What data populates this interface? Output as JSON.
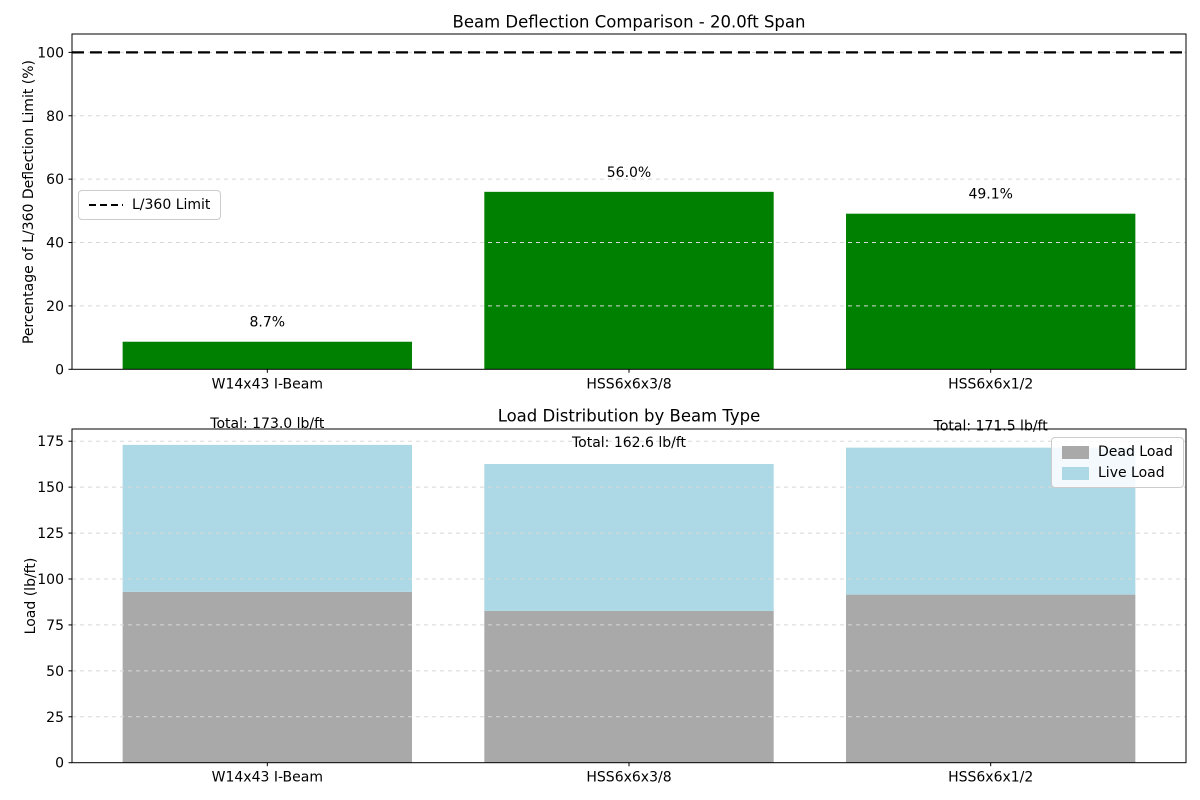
{
  "chart_data": [
    {
      "type": "bar",
      "title": "Beam Deflection Comparison - 20.0ft Span",
      "ylabel": "Percentage of L/360 Deflection Limit (%)",
      "xlabel": "",
      "categories": [
        "W14x43 I-Beam",
        "HSS6x6x3/8",
        "HSS6x6x1/2"
      ],
      "values": [
        8.7,
        56.0,
        49.1
      ],
      "bar_labels": [
        "8.7%",
        "56.0%",
        "49.1%"
      ],
      "bar_color": "#008000",
      "yticks": [
        0,
        20,
        40,
        60,
        80,
        100
      ],
      "ylim": [
        0,
        105.8
      ],
      "grid": "dashed-horizontal-y",
      "reference_line": {
        "value": 100,
        "label": "L/360 Limit",
        "color": "#000000",
        "style": "dashed"
      },
      "legend_position": "center-left",
      "legend": [
        {
          "label": "L/360 Limit",
          "sample": "dashed-line",
          "color": "#000000"
        }
      ]
    },
    {
      "type": "stacked-bar",
      "title": "Load Distribution by Beam Type",
      "ylabel": "Load (lb/ft)",
      "xlabel": "",
      "categories": [
        "W14x43 I-Beam",
        "HSS6x6x3/8",
        "HSS6x6x1/2"
      ],
      "series": [
        {
          "name": "Dead Load",
          "color": "#a9a9a9",
          "values": [
            93.0,
            82.6,
            91.5
          ]
        },
        {
          "name": "Live Load",
          "color": "#add8e6",
          "values": [
            80.0,
            80.0,
            80.0
          ]
        }
      ],
      "totals": [
        173.0,
        162.6,
        171.5
      ],
      "total_labels": [
        "Total: 173.0 lb/ft",
        "Total: 162.6 lb/ft",
        "Total: 171.5 lb/ft"
      ],
      "yticks": [
        0,
        25,
        50,
        75,
        100,
        125,
        150,
        175
      ],
      "ylim": [
        0,
        181.65
      ],
      "grid": "dashed-horizontal-y",
      "legend_position": "upper-right",
      "legend": [
        {
          "label": "Dead Load",
          "sample": "patch",
          "color": "#a9a9a9"
        },
        {
          "label": "Live Load",
          "sample": "patch",
          "color": "#add8e6"
        }
      ]
    }
  ],
  "colors": {
    "bar_green": "#008000",
    "dead_load_gray": "#a9a9a9",
    "live_load_blue": "#add8e6",
    "grid_line": "#d8d8d8",
    "spine": "#000000",
    "reference_line": "#000000"
  }
}
